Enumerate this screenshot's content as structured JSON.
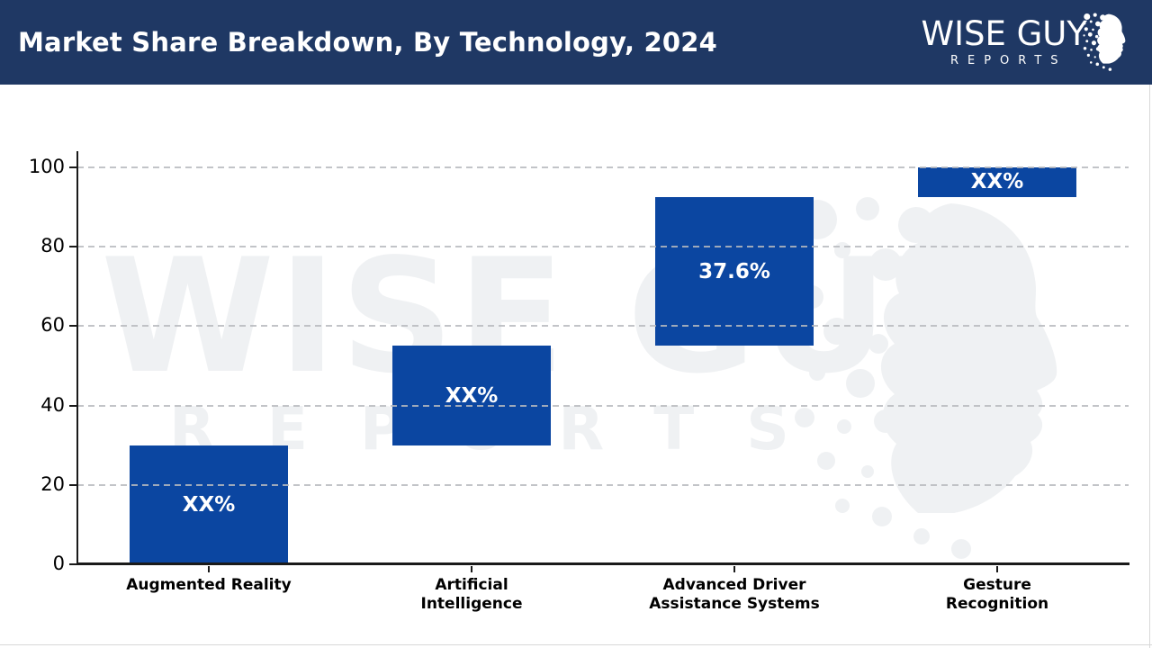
{
  "header": {
    "title": "Market Share Breakdown, By Technology, 2024",
    "brand": {
      "line1": "WISE GUY",
      "line2": "REPORTS"
    }
  },
  "watermark": {
    "line1": "WISE GUY",
    "line2": "REPORTS"
  },
  "chart_data": {
    "type": "bar",
    "subtype": "waterfall",
    "title": "Market Share Breakdown, By Technology, 2024",
    "xlabel": "",
    "ylabel": "",
    "ylim": [
      0,
      100
    ],
    "yticks": [
      0,
      20,
      40,
      60,
      80,
      100
    ],
    "grid": "dashed-horizontal-over-bars",
    "legend": "none",
    "bar_color": "#0b46a1",
    "header_color": "#1f3864",
    "categories": [
      "Augmented Reality",
      "Artificial\nIntelligence",
      "Advanced Driver\nAssistance Systems",
      "Gesture\nRecognition"
    ],
    "segments": [
      {
        "category": "Augmented Reality",
        "start": 0,
        "end": 30,
        "value_label": "XX%"
      },
      {
        "category": "Artificial\nIntelligence",
        "start": 30,
        "end": 55,
        "value_label": "XX%"
      },
      {
        "category": "Advanced Driver\nAssistance Systems",
        "start": 55,
        "end": 92.6,
        "value_label": "37.6%"
      },
      {
        "category": "Gesture\nRecognition",
        "start": 92.6,
        "end": 100,
        "value_label": "XX%"
      }
    ],
    "estimated_segment_sizes": [
      30,
      25,
      37.6,
      7.4
    ]
  }
}
